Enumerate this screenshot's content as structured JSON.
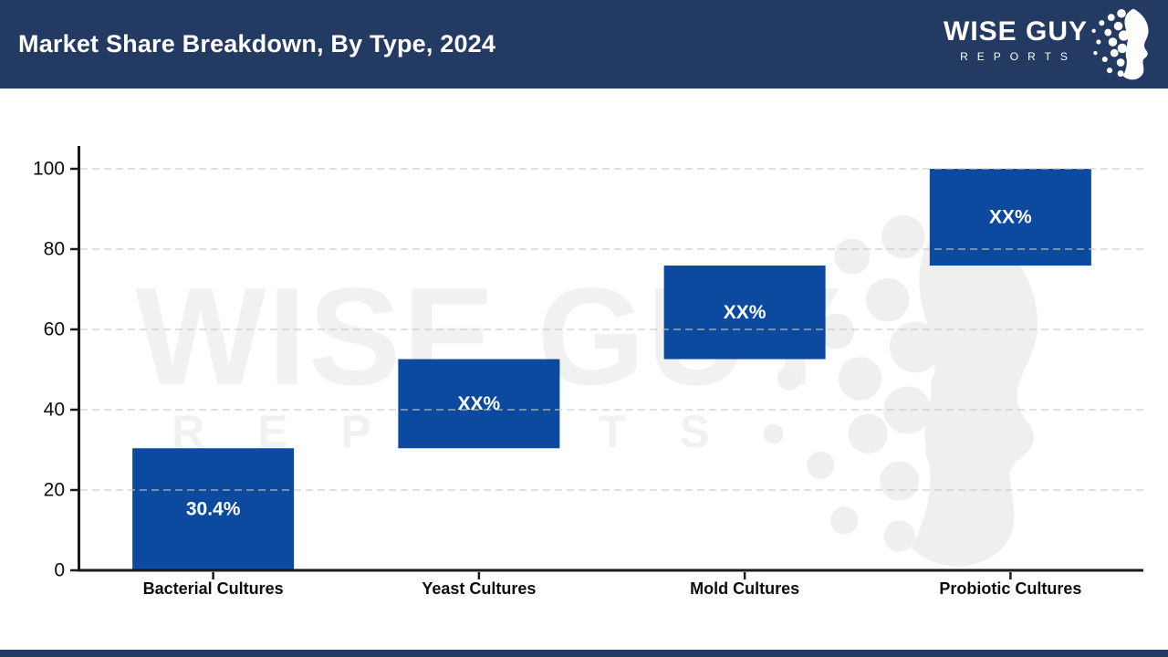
{
  "header": {
    "title": "Market Share Breakdown, By Type, 2024",
    "logo": {
      "line1": "WISE GUY",
      "line2": "REPORTS"
    }
  },
  "watermark": {
    "line1": "WISE GUY",
    "line2": "REPORTS"
  },
  "colors": {
    "header_bg": "#233A63",
    "bar_blue": "#0B4A9E",
    "axis_black": "#1A1A1A",
    "gridline_gray": "#C8C8C8",
    "watermark_gray": "#F1F1F1",
    "label_white": "#FFFFFF"
  },
  "chart_data": {
    "type": "bar",
    "variant": "waterfall",
    "title": "Market Share Breakdown, By Type, 2024",
    "categories": [
      "Bacterial Cultures",
      "Yeast Cultures",
      "Mold Cultures",
      "Probiotic Cultures"
    ],
    "segments": [
      {
        "category": "Bacterial Cultures",
        "start": 0,
        "end": 30.4,
        "label": "30.4%"
      },
      {
        "category": "Yeast Cultures",
        "start": 30.4,
        "end": 52.6,
        "label": "XX%"
      },
      {
        "category": "Mold Cultures",
        "start": 52.6,
        "end": 75.9,
        "label": "XX%"
      },
      {
        "category": "Probiotic Cultures",
        "start": 75.9,
        "end": 100,
        "label": "XX%"
      }
    ],
    "xlabel": "",
    "ylabel": "",
    "ylim": [
      0,
      100
    ],
    "yticks": [
      0,
      20,
      40,
      60,
      80,
      100
    ],
    "grid": "horizontal-dashed, drawn over bars",
    "legend": "none",
    "bar_color": "#0B4A9E",
    "value_label_color": "#FFFFFF"
  }
}
